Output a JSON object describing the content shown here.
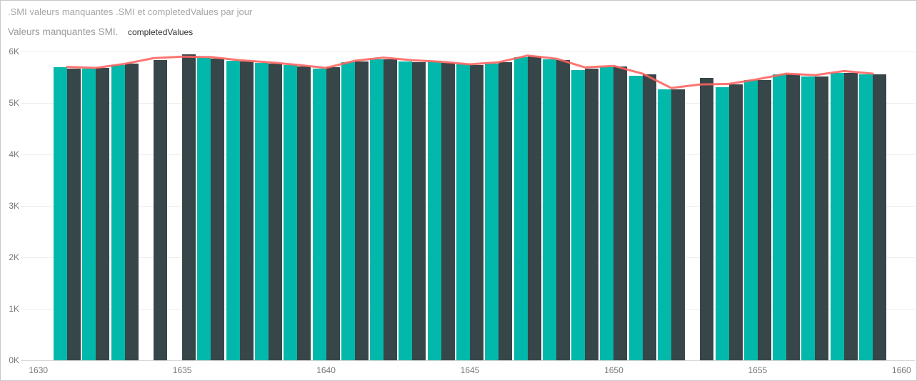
{
  "header": {
    "title": ".SMI valeurs manquantes .SMI et completedValues par jour"
  },
  "legend": {
    "items": [
      {
        "label": "Valeurs manquantes SMI.",
        "color": "#9a9a9a"
      },
      {
        "label": "completedValues",
        "color": "#323232"
      }
    ]
  },
  "colors": {
    "bar_teal": "#01B8AA",
    "bar_dark": "#374649",
    "line_red": "#FD625E",
    "grid": "#ededed",
    "axis_text": "#777777",
    "title_text": "#a6a6a6",
    "background": "#ffffff"
  },
  "chart_data": {
    "type": "combo-clustered-column-line",
    "title": ".SMI valeurs manquantes .SMI et completedValues par jour",
    "x": [
      1631,
      1632,
      1633,
      1634,
      1635,
      1636,
      1637,
      1638,
      1639,
      1640,
      1641,
      1642,
      1643,
      1644,
      1645,
      1646,
      1647,
      1648,
      1649,
      1650,
      1651,
      1652,
      1653,
      1654,
      1655,
      1656,
      1657,
      1658,
      1659
    ],
    "x_ticks": [
      1630,
      1635,
      1640,
      1645,
      1650,
      1655,
      1660
    ],
    "y_tick_labels": [
      "0K",
      "1K",
      "2K",
      "3K",
      "4K",
      "5K",
      "6K"
    ],
    "y_tick_values": [
      0,
      1000,
      2000,
      3000,
      4000,
      5000,
      6000
    ],
    "ylim": [
      0,
      6000
    ],
    "grid": true,
    "legend_position": "top-left",
    "series": [
      {
        "name": "Valeurs manquantes SMI.",
        "type": "bar",
        "color": "#01B8AA",
        "values": [
          5690,
          5660,
          5740,
          null,
          null,
          5880,
          5820,
          5780,
          5730,
          5670,
          5790,
          5850,
          5810,
          5810,
          5750,
          5770,
          5890,
          5850,
          5640,
          5690,
          5530,
          5270,
          null,
          5310,
          5440,
          5550,
          5520,
          5590,
          5550
        ]
      },
      {
        "name": "completedValues",
        "type": "bar",
        "color": "#374649",
        "values": [
          5670,
          5680,
          5770,
          5830,
          5950,
          5860,
          5810,
          5770,
          5710,
          5690,
          5810,
          5850,
          5790,
          5780,
          5740,
          5790,
          5900,
          5840,
          5660,
          5710,
          5550,
          5270,
          5480,
          5360,
          5450,
          5550,
          5520,
          5590,
          5550
        ]
      },
      {
        "name": ".SMI",
        "type": "line",
        "color": "#FD625E",
        "values": [
          5700,
          5680,
          5760,
          5870,
          5900,
          5890,
          5830,
          5790,
          5740,
          5680,
          5820,
          5880,
          5830,
          5800,
          5750,
          5790,
          5920,
          5860,
          5690,
          5720,
          5570,
          5290,
          5360,
          5370,
          5460,
          5570,
          5540,
          5620,
          5570
        ]
      }
    ]
  }
}
